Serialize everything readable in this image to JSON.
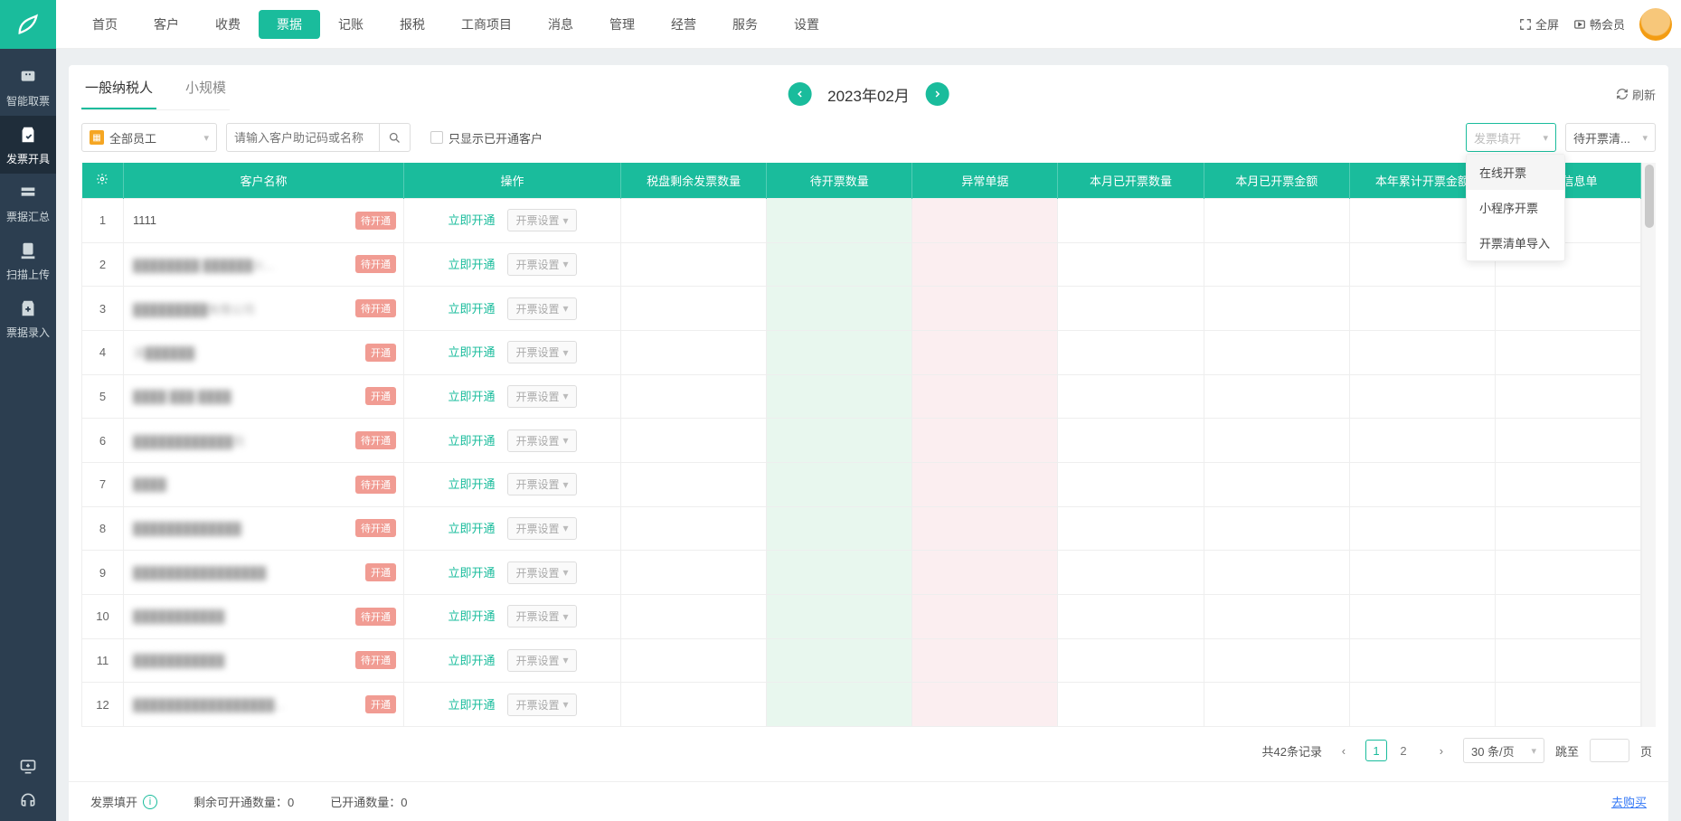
{
  "topbar": {
    "nav": [
      "首页",
      "客户",
      "收费",
      "票据",
      "记账",
      "报税",
      "工商项目",
      "消息",
      "管理",
      "经营",
      "服务",
      "设置"
    ],
    "activeIndex": 3,
    "fullscreen": "全屏",
    "vip": "畅会员"
  },
  "sidebar": {
    "items": [
      {
        "label": "智能取票"
      },
      {
        "label": "发票开具"
      },
      {
        "label": "票据汇总"
      },
      {
        "label": "扫描上传"
      },
      {
        "label": "票据录入"
      }
    ],
    "activeIndex": 1
  },
  "tabs": {
    "items": [
      "一般纳税人",
      "小规模"
    ],
    "activeIndex": 0
  },
  "dateNav": {
    "label": "2023年02月"
  },
  "refresh": "刷新",
  "filters": {
    "employee": "全部员工",
    "searchPlaceholder": "请输入客户助记码或名称",
    "onlyOpened": "只显示已开通客户",
    "invoiceFill": "发票填开",
    "pending": "待开票清..."
  },
  "dropdown": {
    "items": [
      "在线开票",
      "小程序开票",
      "开票清单导入"
    ],
    "activeIndex": 0
  },
  "table": {
    "headers": [
      "",
      "客户名称",
      "操作",
      "税盘剩余发票数量",
      "待开票数量",
      "异常单据",
      "本月已开票数量",
      "本月已开票金额",
      "本年累计开票金额",
      "红字信息单"
    ],
    "action1": "立即开通",
    "action2": "开票设置",
    "badge": "待开通",
    "badgeShort": "开通",
    "rows": [
      {
        "idx": 1,
        "name": "1111",
        "blur": false,
        "badge": "full"
      },
      {
        "idx": 2,
        "name": "████████  ██████火...",
        "blur": true,
        "badge": "full"
      },
      {
        "idx": 3,
        "name": "█████████有限公司",
        "blur": true,
        "badge": "full"
      },
      {
        "idx": 4,
        "name": "滨██████",
        "blur": true,
        "badge": "short"
      },
      {
        "idx": 5,
        "name": "████  ███  ████",
        "blur": true,
        "badge": "short"
      },
      {
        "idx": 6,
        "name": "████████████司",
        "blur": true,
        "badge": "full"
      },
      {
        "idx": 7,
        "name": "████",
        "blur": true,
        "badge": "full"
      },
      {
        "idx": 8,
        "name": "█████████████",
        "blur": true,
        "badge": "full"
      },
      {
        "idx": 9,
        "name": "████████████████",
        "blur": true,
        "badge": "short"
      },
      {
        "idx": 10,
        "name": "███████████",
        "blur": true,
        "badge": "full"
      },
      {
        "idx": 11,
        "name": "███████████",
        "blur": true,
        "badge": "full"
      },
      {
        "idx": 12,
        "name": "█████████████████...",
        "blur": true,
        "badge": "short"
      }
    ]
  },
  "pager": {
    "total": "共42条记录",
    "pages": [
      "1",
      "2"
    ],
    "active": 0,
    "perPage": "30 条/页",
    "jumpLabel": "跳至",
    "pageSuffix": "页"
  },
  "footer": {
    "title": "发票填开",
    "remain": "剩余可开通数量：0",
    "opened": "已开通数量：0",
    "buy": "去购买"
  },
  "colors": {
    "primary": "#1abc9c",
    "headerGreen": "#1abc9c",
    "colGreen": "#e8f7ee",
    "colPink": "#fbeef0"
  }
}
